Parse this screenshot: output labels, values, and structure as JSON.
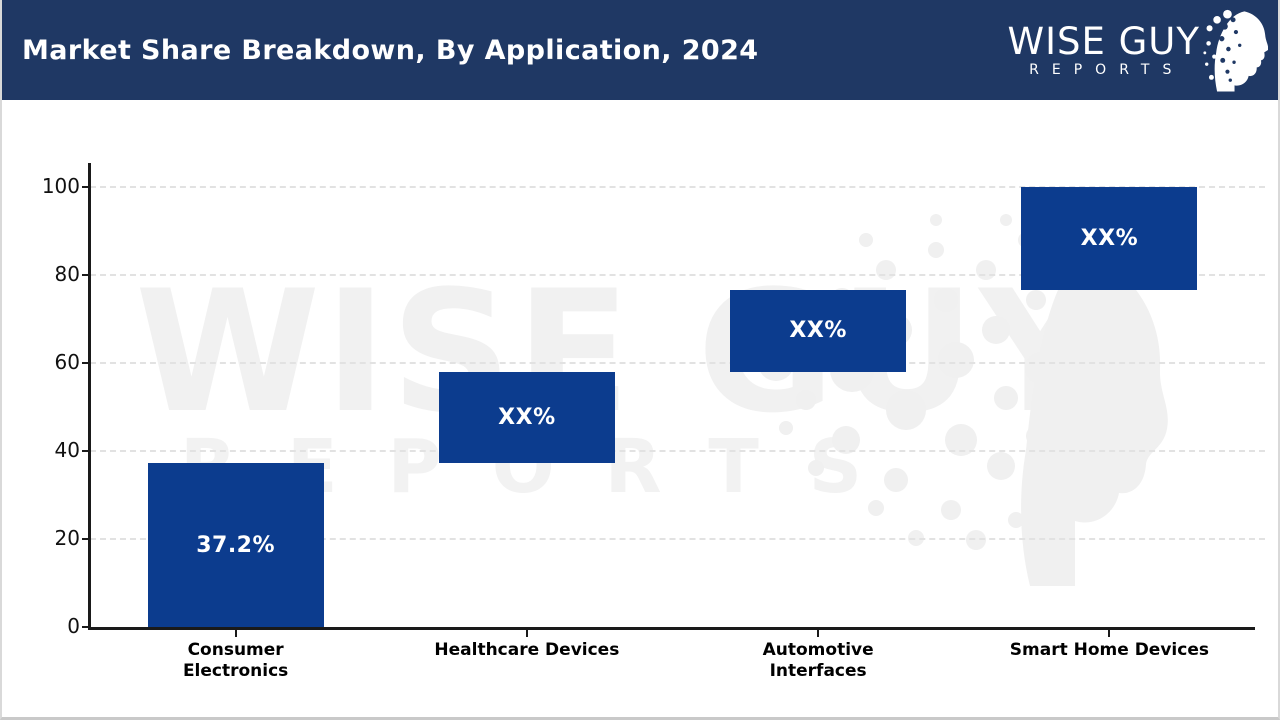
{
  "header": {
    "title": "Market Share Breakdown, By Application, 2024",
    "bg_color": "#1f3864",
    "logo": {
      "line1": "WISE GUY",
      "line2": "REPORTS"
    }
  },
  "watermark": {
    "line1": "WISE GUY",
    "line2": "REPORTS"
  },
  "chart_data": {
    "type": "bar",
    "subtype": "waterfall",
    "title": "Market Share Breakdown, By Application, 2024",
    "xlabel": "",
    "ylabel": "",
    "categories": [
      "Consumer Electronics",
      "Healthcare Devices",
      "Automotive Interfaces",
      "Smart Home Devices"
    ],
    "category_label_lines": [
      [
        "Consumer",
        "Electronics"
      ],
      [
        "Healthcare Devices"
      ],
      [
        "Automotive",
        "Interfaces"
      ],
      [
        "Smart Home Devices"
      ]
    ],
    "segments": [
      {
        "category": "Consumer Electronics",
        "start": 0,
        "end": 37.2,
        "value": 37.2,
        "label": "37.2%"
      },
      {
        "category": "Healthcare Devices",
        "start": 37.2,
        "end": 58.0,
        "value": 20.8,
        "label": "XX%"
      },
      {
        "category": "Automotive Interfaces",
        "start": 58.0,
        "end": 76.6,
        "value": 18.6,
        "label": "XX%"
      },
      {
        "category": "Smart Home Devices",
        "start": 76.6,
        "end": 100,
        "value": 23.4,
        "label": "XX%"
      }
    ],
    "ylim": [
      0,
      100
    ],
    "yticks": [
      0,
      20,
      40,
      60,
      80,
      100
    ],
    "grid": true,
    "grid_style": "dashed",
    "legend": "none",
    "bar_color": "#0c3c8e",
    "bar_label_color": "#ffffff",
    "axis_color": "#1a1a1a",
    "grid_color": "#e2e2e2",
    "watermark_color": "#f0f0f0"
  }
}
